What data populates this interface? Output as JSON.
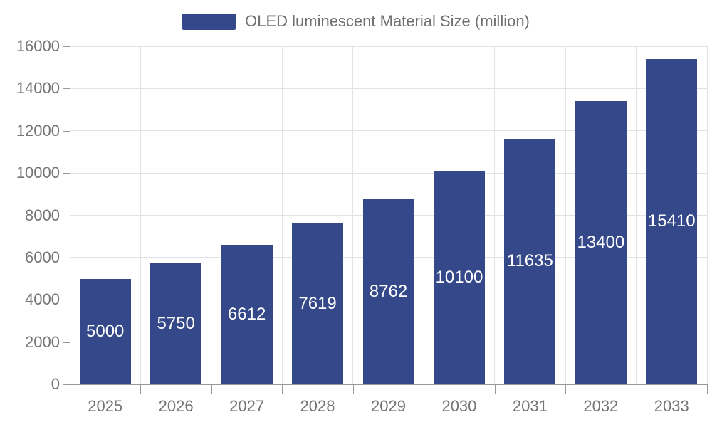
{
  "legend": {
    "label": "OLED luminescent Material Size (million)",
    "swatch_color": "#35498A"
  },
  "colors": {
    "background": "#FFFFFF",
    "bar": "#35498A",
    "grid_line": "#E2E2E9",
    "axis_line": "#999999",
    "tick_label": "#757575",
    "legend_text": "#707070",
    "value_label": "#FFFFFF"
  },
  "chart_data": {
    "type": "bar",
    "title": "OLED luminescent Material Size (million)",
    "categories": [
      "2025",
      "2026",
      "2027",
      "2028",
      "2029",
      "2030",
      "2031",
      "2032",
      "2033"
    ],
    "values": [
      5000,
      5750,
      6612,
      7619,
      8762,
      10100,
      11635,
      13400,
      15410
    ],
    "series_name": "OLED luminescent Material Size (million)",
    "xlabel": "",
    "ylabel": "",
    "ylim": [
      0,
      16000
    ],
    "ytick_interval": 2000,
    "ytick_labels": [
      "0",
      "2000",
      "4000",
      "6000",
      "8000",
      "10000",
      "12000",
      "14000",
      "16000"
    ],
    "grid": true,
    "vertical_gridlines": true,
    "legend_position": "top-center",
    "value_label_position": "inside-center",
    "bar_color": "#35498A"
  }
}
